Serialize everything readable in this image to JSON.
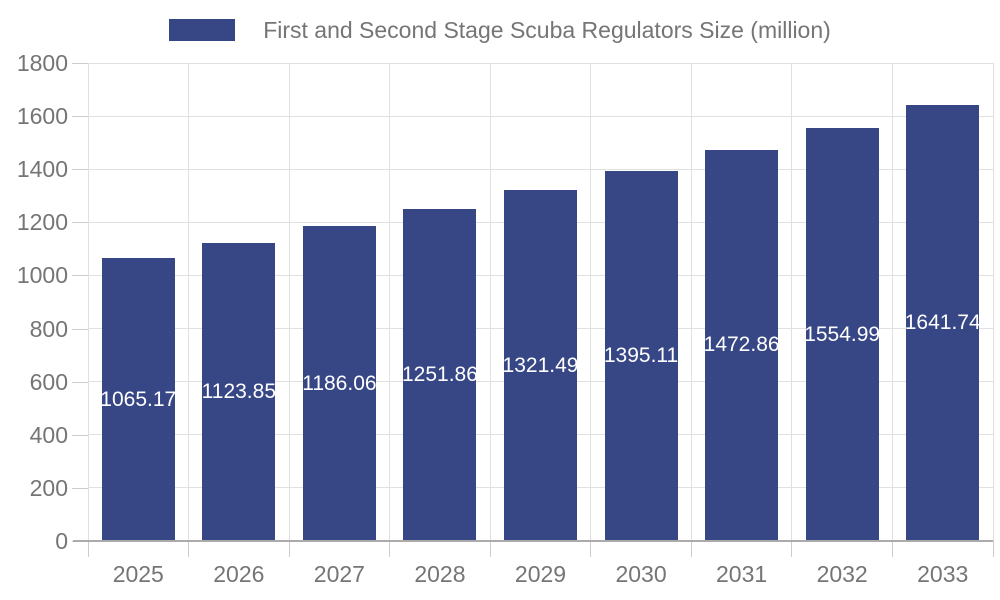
{
  "chart_data": {
    "type": "bar",
    "title": "First and Second Stage Scuba Regulators Size (million)",
    "series_name": "First and Second Stage Scuba Regulators Size (million)",
    "categories": [
      "2025",
      "2026",
      "2027",
      "2028",
      "2029",
      "2030",
      "2031",
      "2032",
      "2033"
    ],
    "values": [
      1065.17,
      1123.85,
      1186.06,
      1251.86,
      1321.49,
      1395.11,
      1472.86,
      1554.99,
      1641.74
    ],
    "xlabel": "",
    "ylabel": "",
    "ylim": [
      0,
      1800
    ],
    "yticks": [
      0,
      200,
      400,
      600,
      800,
      1000,
      1200,
      1400,
      1600,
      1800
    ],
    "grid": true,
    "legend_position": "top-center",
    "bar_label_position": "inside-center",
    "colors": {
      "bar": "#374785",
      "bar_label": "#ffffff",
      "axis_label": "#757575",
      "gridline": "#e0e0e0",
      "tick": "#cccccc",
      "axis_line": "#ababab",
      "background": "#ffffff"
    }
  }
}
